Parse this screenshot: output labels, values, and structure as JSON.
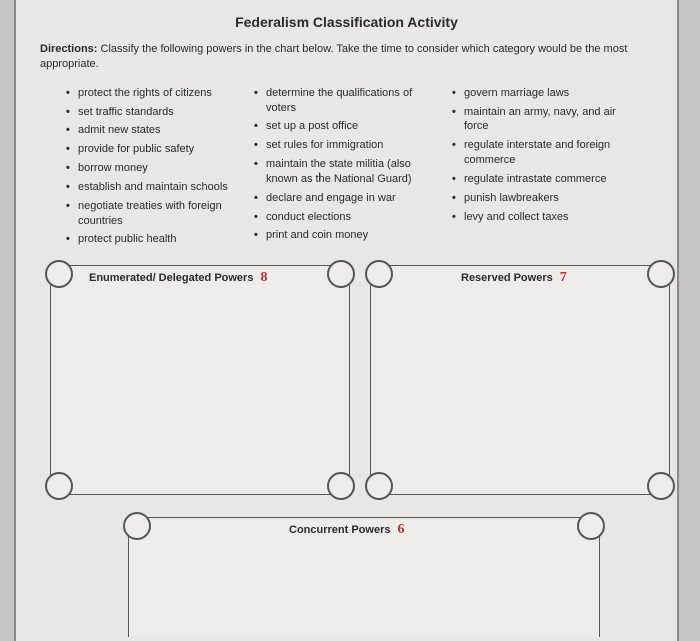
{
  "title": "Federalism Classification Activity",
  "directions_label": "Directions:",
  "directions_text": "Classify the following powers in the chart below. Take the time to consider which category would be the most appropriate.",
  "col1": [
    "protect the rights of citizens",
    "set traffic standards",
    "admit new states",
    "provide for public safety",
    "borrow money",
    "establish and maintain schools",
    "negotiate treaties with foreign countries",
    "protect public health"
  ],
  "col2": [
    "determine the qualifications of voters",
    "set up a post office",
    "set rules for immigration",
    "maintain the state militia (also known as the National Guard)",
    "declare and engage in war",
    "conduct elections",
    "print and coin money"
  ],
  "col3": [
    "govern marriage laws",
    "maintain an army, navy, and air force",
    "regulate interstate and foreign commerce",
    "regulate intrastate commerce",
    "punish lawbreakers",
    "levy and collect taxes"
  ],
  "scroll_left_label": "Enumerated/ Delegated Powers",
  "scroll_left_num": "8",
  "scroll_right_label": "Reserved Powers",
  "scroll_right_num": "7",
  "scroll_bottom_label": "Concurrent Powers",
  "scroll_bottom_num": "6",
  "colors": {
    "page_bg": "#e8e7e3",
    "outer_bg": "#c8c6c2",
    "text": "#2a2a2a",
    "handwritten": "#b33"
  }
}
